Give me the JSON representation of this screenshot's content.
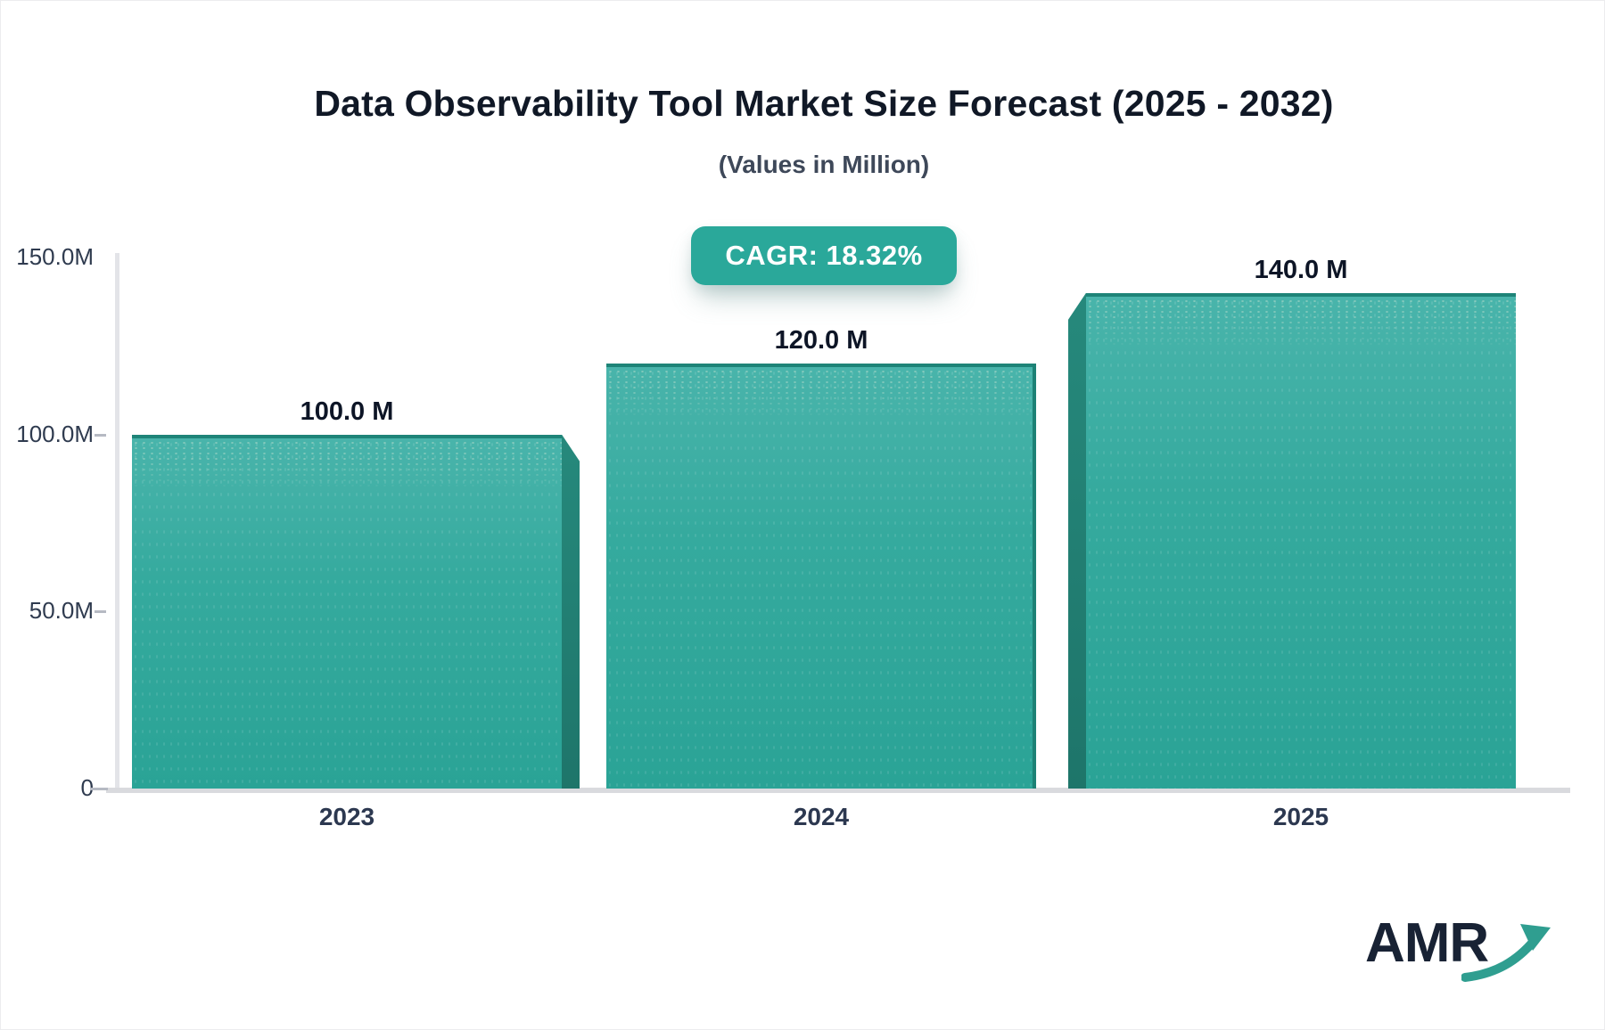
{
  "page": {
    "title": "Data Observability Tool Market Size Forecast (2025 - 2032)",
    "subtitle": "(Values in Million)",
    "cagr_label": "CAGR: 18.32%"
  },
  "logo": {
    "text": "AMR",
    "icon": "growth-arrow-icon"
  },
  "colors": {
    "accent_teal": "#2aa89a",
    "bar_face_top": "#49b4ab",
    "bar_face_bottom": "#2aa396",
    "bar_side_face": "#21796e",
    "bar_top_edge": "#1e8478",
    "axis_line": "#e3e4e8",
    "baseline": "#d9dade",
    "title_text": "#101826",
    "tick_label_text": "#2f3b4f",
    "value_label_text": "#0d1526",
    "badge_text": "#ffffff",
    "logo_text": "#182234",
    "logo_arrow": "#2f9e90"
  },
  "chart_data": {
    "type": "bar",
    "title": "Data Observability Tool Market Size Forecast (2025 - 2032)",
    "subtitle": "(Values in Million)",
    "unit": "Million",
    "categories": [
      "2023",
      "2024",
      "2025"
    ],
    "values": [
      100.0,
      120.0,
      140.0
    ],
    "bar_labels": [
      "100.0 M",
      "120.0 M",
      "140.0 M"
    ],
    "annotations": [
      "CAGR: 18.32%"
    ],
    "xlabel": "",
    "ylabel": "",
    "ylim": [
      0,
      150
    ],
    "y_ticks": [
      {
        "label": "150.0M",
        "value": 150,
        "dash": false
      },
      {
        "label": "100.0M",
        "value": 100,
        "dash": true
      },
      {
        "label": "50.0M",
        "value": 50,
        "dash": true
      },
      {
        "label": "0",
        "value": 0,
        "dash": true
      }
    ],
    "grid": false,
    "legend": null
  }
}
